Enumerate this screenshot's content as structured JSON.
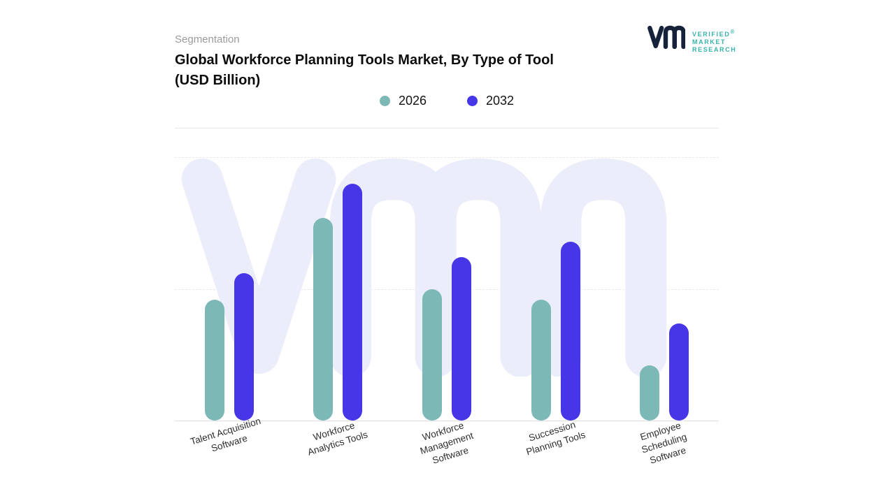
{
  "header": {
    "eyebrow": "Segmentation",
    "title_lines": [
      "Global Workforce Planning Tools Market, By Type of Tool",
      "(USD Billion)"
    ]
  },
  "logo": {
    "monogram": "vm",
    "lines": [
      "VERIFIED",
      "MARKET",
      "RESEARCH"
    ],
    "registered": "®",
    "mark_color": "#16213a",
    "text_color": "#38b2ad"
  },
  "watermark": "vmr",
  "chart_data": {
    "type": "bar",
    "title": "Global Workforce Planning Tools Market, By Type of Tool (USD Billion)",
    "unit": "USD Billion",
    "categories": [
      "Talent Acquisition Software",
      "Workforce Analytics Tools",
      "Workforce Management Software",
      "Succession Planning Tools",
      "Employee Scheduling Software"
    ],
    "series": [
      {
        "name": "2026",
        "color": "#7cb8b6",
        "values": [
          4.6,
          7.7,
          5.0,
          4.6,
          2.1
        ]
      },
      {
        "name": "2032",
        "color": "#4736e8",
        "values": [
          5.6,
          9.0,
          6.2,
          6.8,
          3.7
        ]
      }
    ],
    "ylim": [
      0,
      10
    ],
    "grid": "dashed horizontal",
    "legend_position": "top",
    "value_labels": false
  }
}
